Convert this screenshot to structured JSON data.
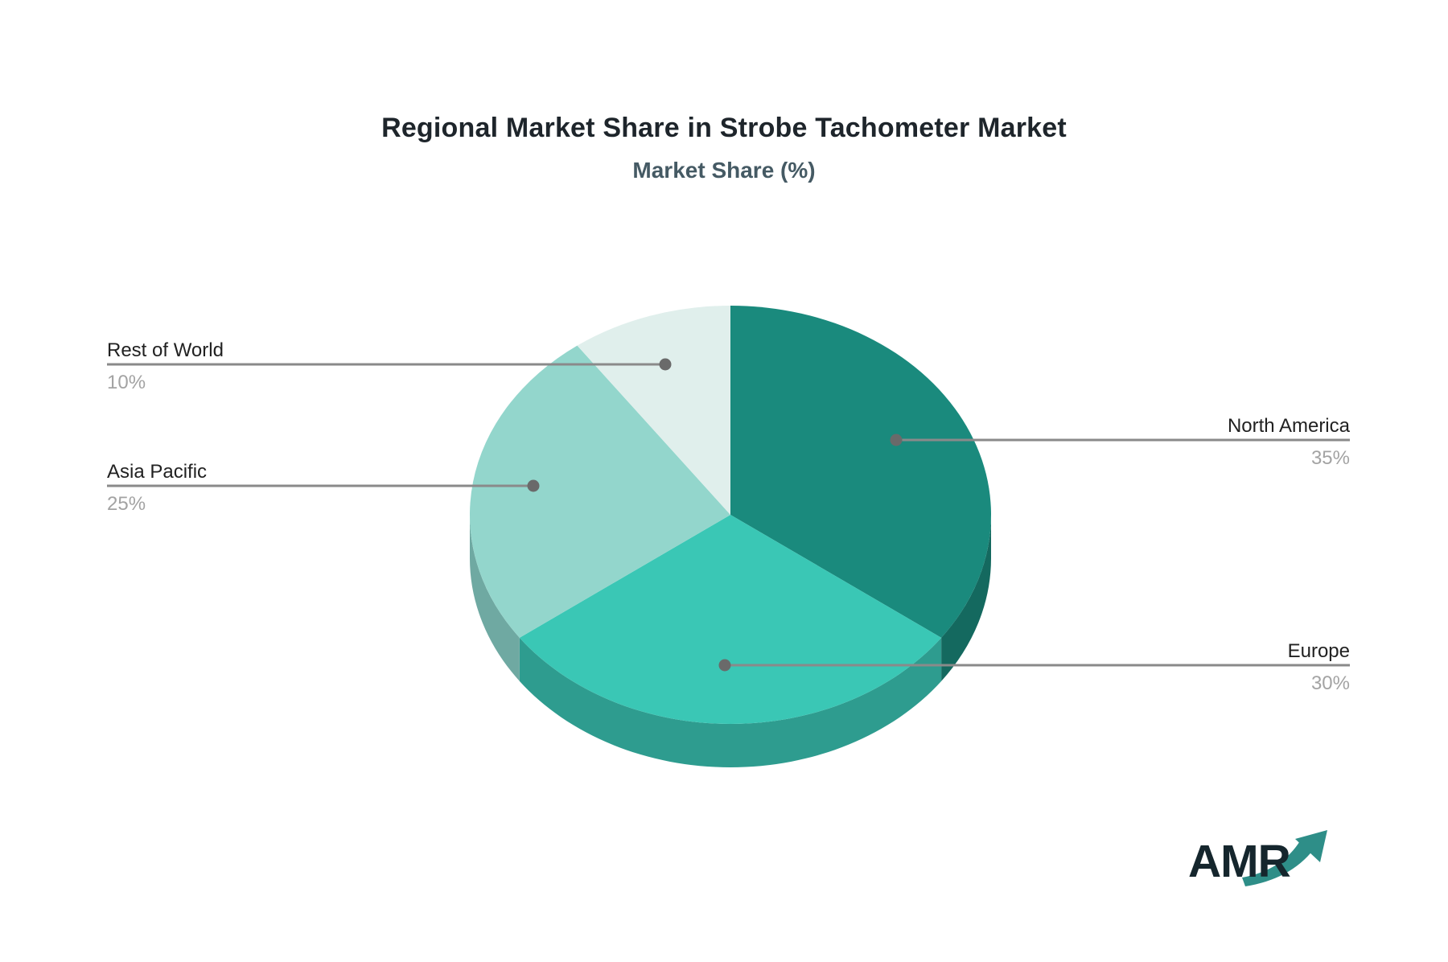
{
  "header": {
    "title": "Regional Market Share in Strobe Tachometer Market",
    "subtitle": "Market Share (%)"
  },
  "chart_data": {
    "type": "pie",
    "style": "3d",
    "title": "Regional Market Share in Strobe Tachometer Market",
    "subtitle": "Market Share (%)",
    "unit": "%",
    "start_angle_deg": 0,
    "direction": "clockwise",
    "slices": [
      {
        "label": "North America",
        "value": 35,
        "display_value": "35%",
        "color": "#1A8A7D",
        "side_color": "#14695F"
      },
      {
        "label": "Europe",
        "value": 30,
        "display_value": "30%",
        "color": "#3AC7B5",
        "side_color": "#2E9C8F"
      },
      {
        "label": "Asia Pacific",
        "value": 25,
        "display_value": "25%",
        "color": "#93D6CC",
        "side_color": "#6FA9A2"
      },
      {
        "label": "Rest of World",
        "value": 10,
        "display_value": "10%",
        "color": "#E0EFEC",
        "side_color": "#BFDCD7"
      }
    ],
    "legend_position": "callouts",
    "callout_label_color": "#212121",
    "callout_value_color": "#A3A3A3",
    "leader_line_color": "#8A8A8A",
    "leader_dot_color": "#6A6A6A",
    "background": "#FFFFFF"
  },
  "branding": {
    "logo_text": "AMR",
    "logo_text_color": "#15262D",
    "logo_arrow_color": "#2E8E88"
  }
}
